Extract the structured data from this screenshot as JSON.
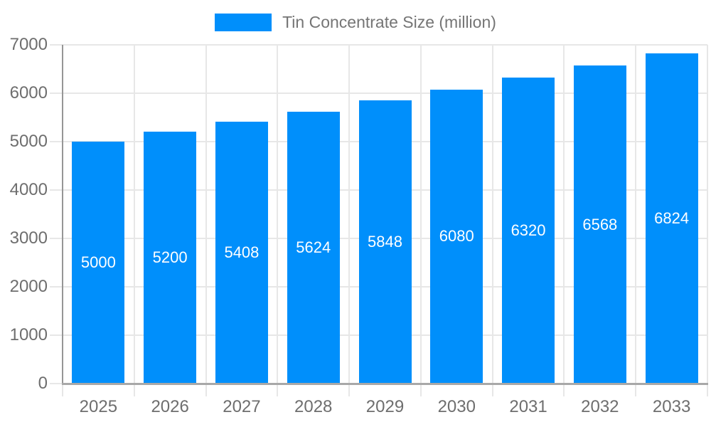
{
  "legend": {
    "label": "Tin Concentrate Size (million)",
    "swatch_color": "#008FFB"
  },
  "chart_data": {
    "type": "bar",
    "title": "Tin Concentrate Size (million)",
    "series_name": "Tin Concentrate Size (million)",
    "categories": [
      "2025",
      "2026",
      "2027",
      "2028",
      "2029",
      "2030",
      "2031",
      "2032",
      "2033"
    ],
    "values": [
      5000,
      5200,
      5408,
      5624,
      5848,
      6080,
      6320,
      6568,
      6824
    ],
    "value_labels": [
      "5000",
      "5200",
      "5408",
      "5624",
      "5848",
      "6080",
      "6320",
      "6568",
      "6824"
    ],
    "xlabel": "",
    "ylabel": "",
    "ylim": [
      0,
      7000
    ],
    "ytick_values": [
      0,
      1000,
      2000,
      3000,
      4000,
      5000,
      6000,
      7000
    ],
    "ytick_labels": [
      "0",
      "1000",
      "2000",
      "3000",
      "4000",
      "5000",
      "6000",
      "7000"
    ],
    "grid": true,
    "legend_position": "top",
    "bar_color": "#008FFB",
    "value_label_color": "#ffffff",
    "axis_label_color": "#6e6e6e"
  }
}
